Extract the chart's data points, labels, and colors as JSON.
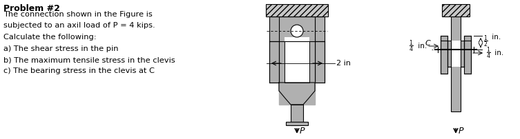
{
  "title": "Problem #2",
  "text_lines": [
    "The connection shown in the Figure is",
    "subjected to an axil load of P = 4 kips.",
    "Calculate the following:",
    "a) The shear stress in the pin",
    "b) The maximum tensile stress in the clevis",
    "c) The bearing stress in the clevis at C"
  ],
  "background_color": "#ffffff",
  "fig_width": 7.53,
  "fig_height": 2.02,
  "gray_light": "#c8c8c8",
  "gray_mid": "#b0b0b0",
  "gray_dark": "#888888",
  "hatch_color": "#999999"
}
